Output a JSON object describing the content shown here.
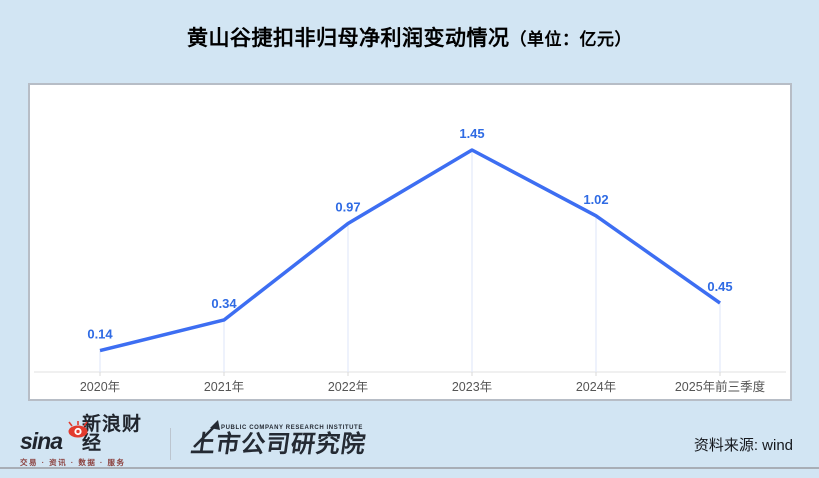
{
  "title": {
    "text": "黄山谷捷扣非归母净利润变动情况",
    "unit": "（单位：亿元）"
  },
  "chart_data": {
    "type": "line",
    "title": "黄山谷捷扣非归母净利润变动情况（单位：亿元）",
    "categories": [
      "2020年",
      "2021年",
      "2022年",
      "2023年",
      "2024年",
      "2025年前三季度"
    ],
    "values": [
      0.14,
      0.34,
      0.97,
      1.45,
      1.02,
      0.45
    ],
    "labels": [
      "0.14",
      "0.34",
      "0.97",
      "1.45",
      "1.02",
      "0.45"
    ],
    "xlabel": "",
    "ylabel": "",
    "ylim": [
      0,
      1.45
    ],
    "grid": false,
    "legend": false,
    "line_color": "#3d6ef2",
    "label_color": "#2f6be4",
    "axis_color": "#e2e2e2",
    "tick_color": "#d9d9d9",
    "dropline_color": "#dde6f9",
    "category_label_color": "#555555"
  },
  "footer": {
    "sina": {
      "brand": "sina",
      "finance": "新浪财经",
      "tagline": "交易 · 资讯 · 数据 · 服务"
    },
    "institute": {
      "en": "PUBLIC COMPANY RESEARCH INSTITUTE",
      "cn": "上市公司研究院"
    },
    "source": "资料来源: wind"
  }
}
